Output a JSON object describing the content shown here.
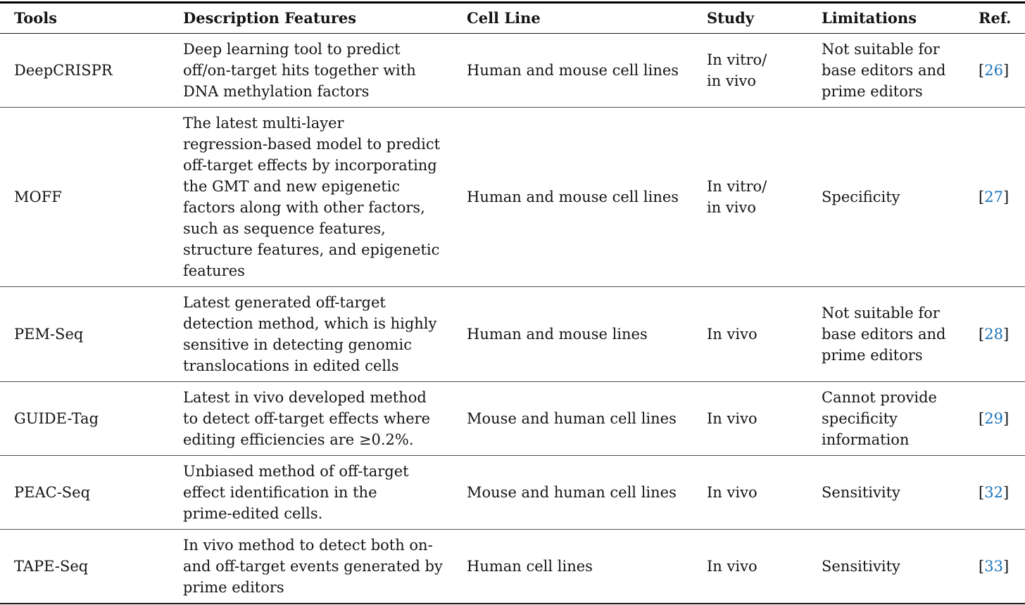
{
  "colors": {
    "ref_link_blue": "#1a75bc",
    "text": "#141414",
    "rule_dark": "#1a1a1a",
    "rule_row": "#4f4f4f"
  },
  "table": {
    "ref_bracket_open": "[",
    "ref_bracket_close": "]",
    "columns": [
      {
        "key": "tool",
        "label": "Tools"
      },
      {
        "key": "description",
        "label": "Description Features"
      },
      {
        "key": "cell_line",
        "label": "Cell Line"
      },
      {
        "key": "study",
        "label": "Study"
      },
      {
        "key": "limitations",
        "label": "Limitations"
      },
      {
        "key": "ref",
        "label": "Ref."
      }
    ],
    "rows": [
      {
        "tool": "DeepCRISPR",
        "description": "Deep learning tool to predict\noff/on-target hits together with\nDNA methylation factors",
        "cell_line": "Human and mouse cell lines",
        "study": "In vitro/\nin vivo",
        "limitations": "Not suitable for\nbase editors and\nprime editors",
        "ref": "26"
      },
      {
        "tool": "MOFF",
        "description": "The latest multi-layer\nregression-based model to predict\noff-target effects by incorporating\nthe GMT and new epigenetic\nfactors along with other factors,\nsuch as sequence features,\nstructure features, and epigenetic\nfeatures",
        "cell_line": "Human and mouse cell lines",
        "study": "In vitro/\nin vivo",
        "limitations": "Specificity",
        "ref": "27"
      },
      {
        "tool": "PEM-Seq",
        "description": "Latest generated off-target\ndetection method, which is highly\nsensitive in detecting genomic\ntranslocations in edited cells",
        "cell_line": "Human and mouse lines",
        "study": "In vivo",
        "limitations": "Not suitable for\nbase editors and\nprime editors",
        "ref": "28"
      },
      {
        "tool": "GUIDE-Tag",
        "description": "Latest in vivo developed method\nto detect off-target effects where\nediting efficiencies are ≥0.2%.",
        "cell_line": "Mouse and human cell lines",
        "study": "In vivo",
        "limitations": "Cannot provide\nspecificity\ninformation",
        "ref": "29"
      },
      {
        "tool": "PEAC-Seq",
        "description": "Unbiased method of off-target\neffect identification in the\nprime-edited cells.",
        "cell_line": "Mouse and human cell lines",
        "study": "In vivo",
        "limitations": "Sensitivity",
        "ref": "32"
      },
      {
        "tool": "TAPE-Seq",
        "description": "In vivo method to detect both on-\nand off-target events generated by\nprime editors",
        "cell_line": "Human cell lines",
        "study": "In vivo",
        "limitations": "Sensitivity",
        "ref": "33"
      }
    ]
  }
}
